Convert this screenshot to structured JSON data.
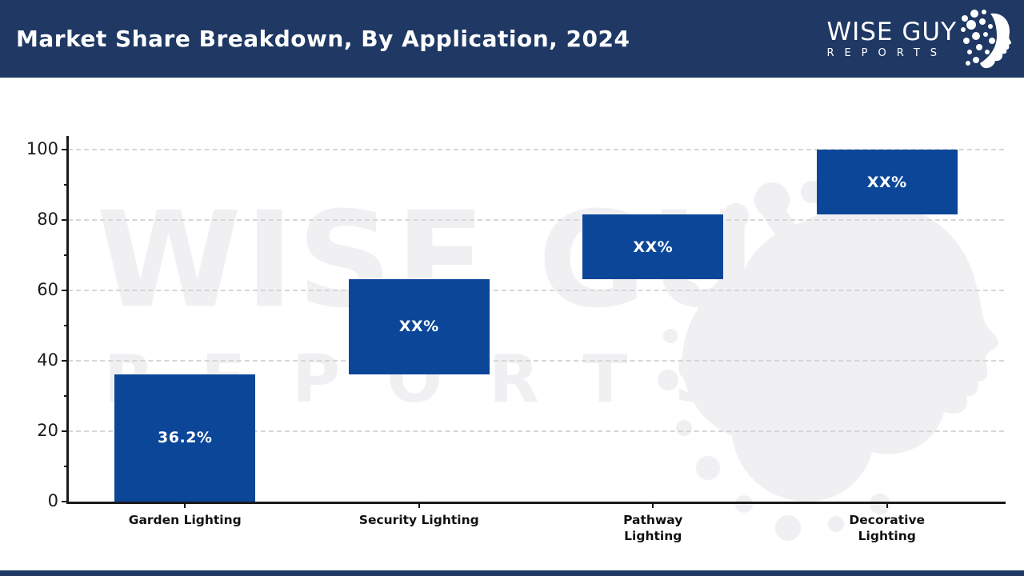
{
  "header": {
    "title": "Market Share Breakdown, By Application, 2024",
    "logo_line1": "WISE GUY",
    "logo_line2": "REPORTS"
  },
  "watermark": {
    "line1": "WISE GUY",
    "line2": "REPORTS"
  },
  "chart_data": {
    "type": "bar",
    "subtype": "floating-waterfall",
    "title": "Market Share Breakdown, By Application, 2024",
    "xlabel": "",
    "ylabel": "",
    "ylim": [
      0,
      100
    ],
    "yticks": [
      0,
      20,
      40,
      60,
      80,
      100
    ],
    "minor_tick_step": 10,
    "grid": "horizontal-dashed",
    "legend": "none",
    "categories": [
      "Garden Lighting",
      "Security Lighting",
      "Pathway Lighting",
      "Decorative Lighting"
    ],
    "bars": [
      {
        "category": "Garden Lighting",
        "start": 0,
        "end": 36.2,
        "label": "36.2%"
      },
      {
        "category": "Security Lighting",
        "start": 36.2,
        "end": 63.3,
        "label": "XX%"
      },
      {
        "category": "Pathway Lighting",
        "start": 63.3,
        "end": 81.6,
        "label": "XX%"
      },
      {
        "category": "Decorative Lighting",
        "start": 81.6,
        "end": 100,
        "label": "XX%"
      }
    ],
    "bar_color": "#0b4699",
    "bar_label_color": "#ffffff",
    "axis_color": "#1a1a1a",
    "grid_color": "#d7d7d7"
  },
  "colors": {
    "header_bg": "#1f3864",
    "footer_bg": "#1f3864",
    "watermark": "#f0f0f3",
    "background": "#ffffff"
  }
}
